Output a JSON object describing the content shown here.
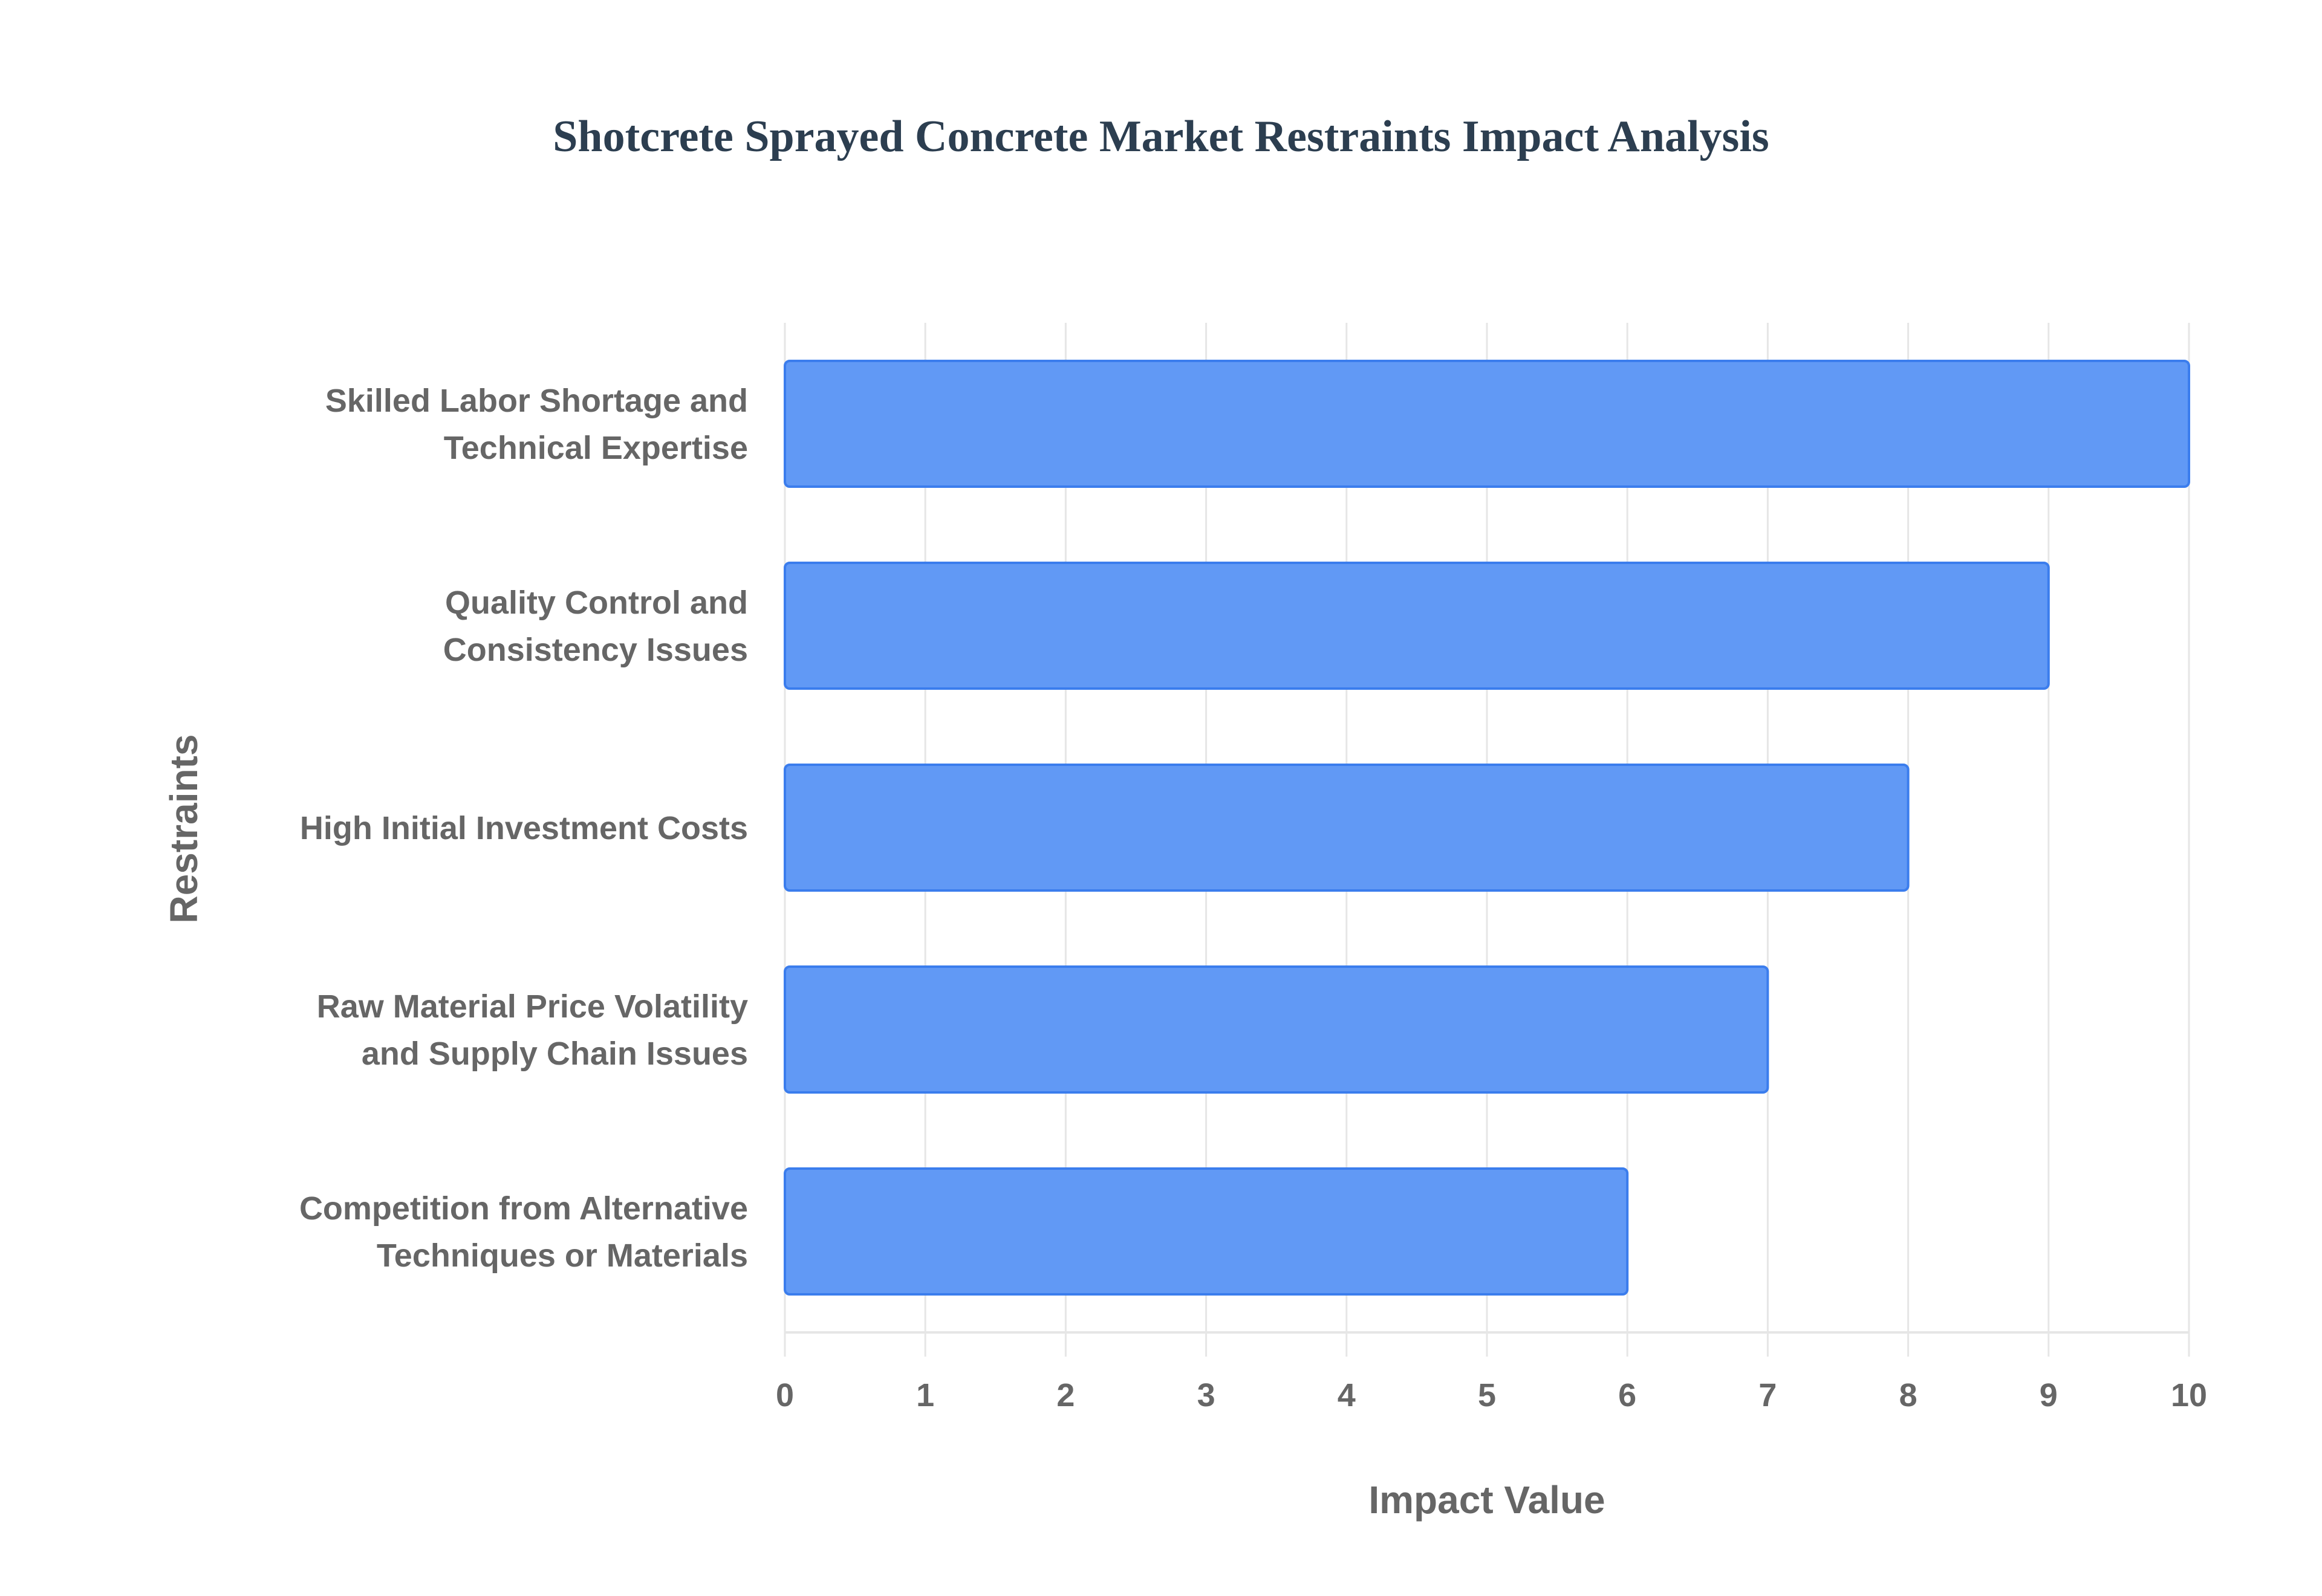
{
  "chart_data": {
    "type": "bar",
    "orientation": "horizontal",
    "title": "Shotcrete Sprayed Concrete Market Restraints Impact Analysis",
    "xlabel": "Impact Value",
    "ylabel": "Restraints",
    "categories": [
      [
        "Skilled Labor Shortage and",
        "Technical Expertise"
      ],
      [
        "Quality Control and",
        "Consistency Issues"
      ],
      [
        "High Initial Investment Costs"
      ],
      [
        "Raw Material Price Volatility",
        "and Supply Chain Issues"
      ],
      [
        "Competition from Alternative",
        "Techniques or Materials"
      ]
    ],
    "values": [
      10,
      9,
      8,
      7,
      6
    ],
    "xlim": [
      0,
      10
    ],
    "xticks": [
      "0",
      "1",
      "2",
      "3",
      "4",
      "5",
      "6",
      "7",
      "8",
      "9",
      "10"
    ],
    "grid": true,
    "legend": "none",
    "colors": {
      "bar_fill": "#6199f5",
      "bar_border": "#3b7ded",
      "grid": "#e6e6e6",
      "title": "#2c3e50",
      "text": "#666666"
    }
  }
}
